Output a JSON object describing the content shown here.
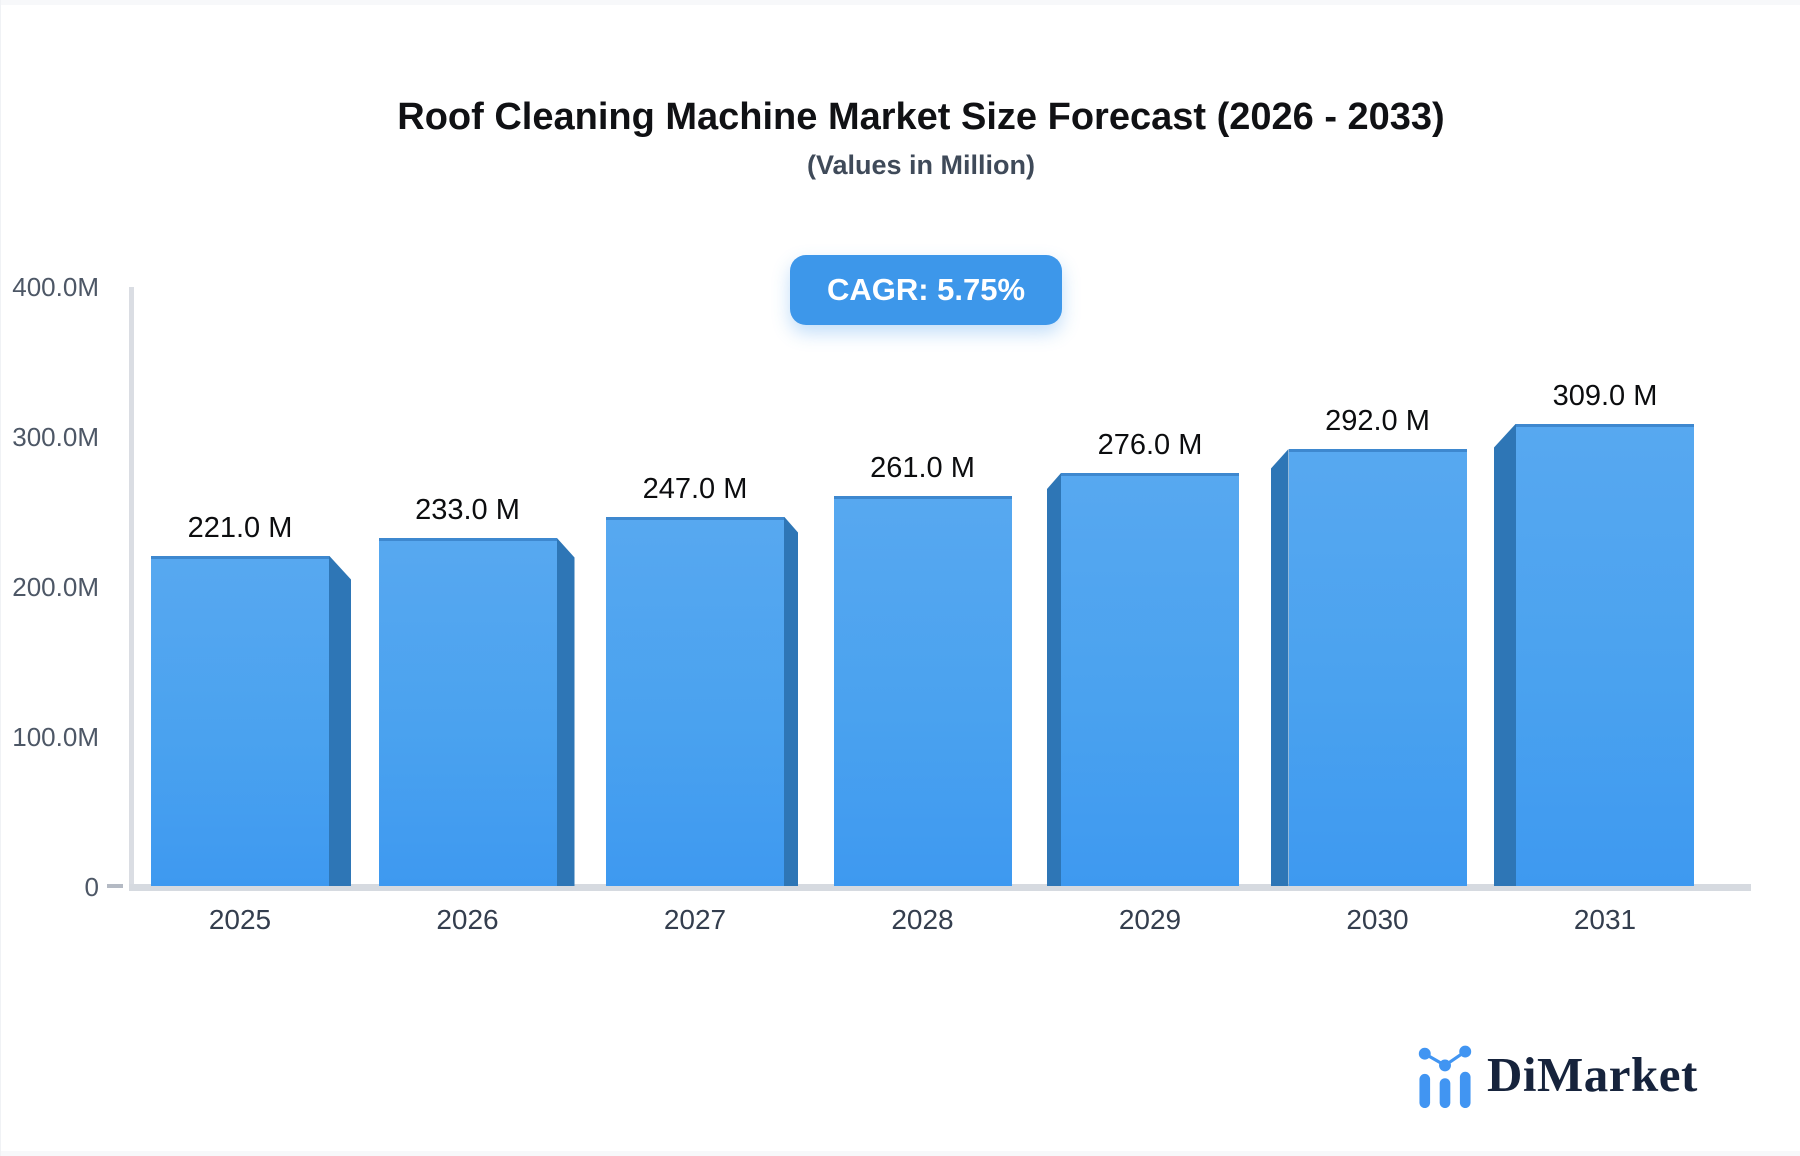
{
  "header": {
    "title": "Roof Cleaning Machine Market Size Forecast (2026 - 2033)",
    "subtitle": "(Values in Million)",
    "cagr_badge": "CAGR: 5.75%"
  },
  "chart_data": {
    "type": "bar",
    "title": "Roof Cleaning Machine Market Size Forecast (2026 - 2033)",
    "subtitle": "(Values in Million)",
    "annotation": "CAGR: 5.75%",
    "categories": [
      "2025",
      "2026",
      "2027",
      "2028",
      "2029",
      "2030",
      "2031"
    ],
    "values": [
      221.0,
      233.0,
      247.0,
      261.0,
      276.0,
      292.0,
      309.0
    ],
    "value_labels": [
      "221.0 M",
      "233.0 M",
      "247.0 M",
      "261.0 M",
      "276.0 M",
      "292.0 M",
      "309.0 M"
    ],
    "y_ticks": [
      {
        "value": 400,
        "label": "400.0M"
      },
      {
        "value": 300,
        "label": "300.0M"
      },
      {
        "value": 200,
        "label": "200.0M"
      },
      {
        "value": 100,
        "label": "100.0M"
      },
      {
        "value": 0,
        "label": "0"
      }
    ],
    "ylim": [
      0,
      400
    ],
    "unit": "Million",
    "grid": false,
    "legend": false,
    "style": "pseudo-3d bars, central vanishing point"
  },
  "colors": {
    "bar_face": "#4aa2ef",
    "bar_face_top": "#57a8f0",
    "bar_face_bottom": "#3e99f0",
    "bar_side": "#2e76b6",
    "bar_top_edge": "#3e88cf",
    "badge_bg": "#3d97ea",
    "badge_text": "#ffffff",
    "axis_line": "#dadde3",
    "logo_blue": "#4195f2",
    "logo_navy": "#16233c"
  },
  "logo": {
    "text": "DiMarket",
    "icon": "mini-bar-line-chart-icon"
  }
}
